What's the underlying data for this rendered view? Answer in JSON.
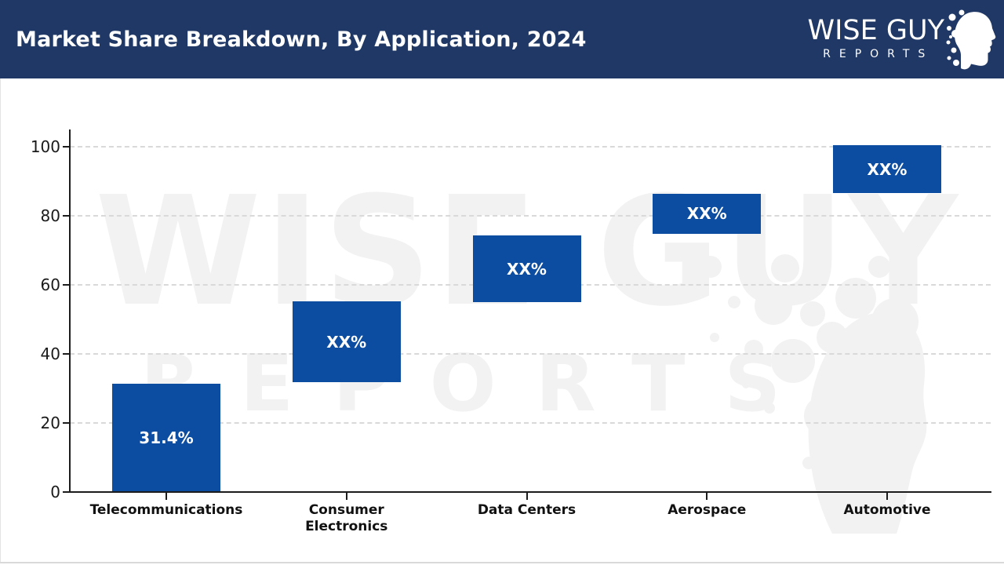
{
  "header": {
    "title": "Market Share Breakdown, By Application, 2024",
    "bg_color": "#203865",
    "logo": {
      "line1": "WISE GUY",
      "line2": "REPORTS"
    }
  },
  "watermark": {
    "line1": "WISE GUY",
    "line2": "REPORTS"
  },
  "chart_data": {
    "type": "bar",
    "subtype": "waterfall",
    "title": "Market Share Breakdown, By Application, 2024",
    "categories": [
      "Telecommunications",
      "Consumer Electronics",
      "Data Centers",
      "Aerospace",
      "Automotive"
    ],
    "category_display": [
      "Telecommunications",
      "Consumer\nElectronics",
      "Data Centers",
      "Aerospace",
      "Automotive"
    ],
    "segments": [
      {
        "label": "Telecommunications",
        "start": 0,
        "end": 31.4,
        "value_label": "31.4%"
      },
      {
        "label": "Consumer Electronics",
        "start": 31.8,
        "end": 55.2,
        "value_label": "XX%"
      },
      {
        "label": "Data Centers",
        "start": 55.0,
        "end": 74.3,
        "value_label": "XX%"
      },
      {
        "label": "Aerospace",
        "start": 74.8,
        "end": 86.4,
        "value_label": "XX%"
      },
      {
        "label": "Automotive",
        "start": 86.6,
        "end": 100.4,
        "value_label": "XX%"
      }
    ],
    "xlabel": "",
    "ylabel": "",
    "yticks": [
      0,
      20,
      40,
      60,
      80,
      100
    ],
    "ylim": [
      0,
      105
    ],
    "grid": "horizontal-dashed",
    "legend": "none",
    "bar_color": "#0c4da2",
    "bar_label_color": "#ffffff",
    "axis_color": "#1c1c1c",
    "gridline_color": "#d9d9d9"
  }
}
